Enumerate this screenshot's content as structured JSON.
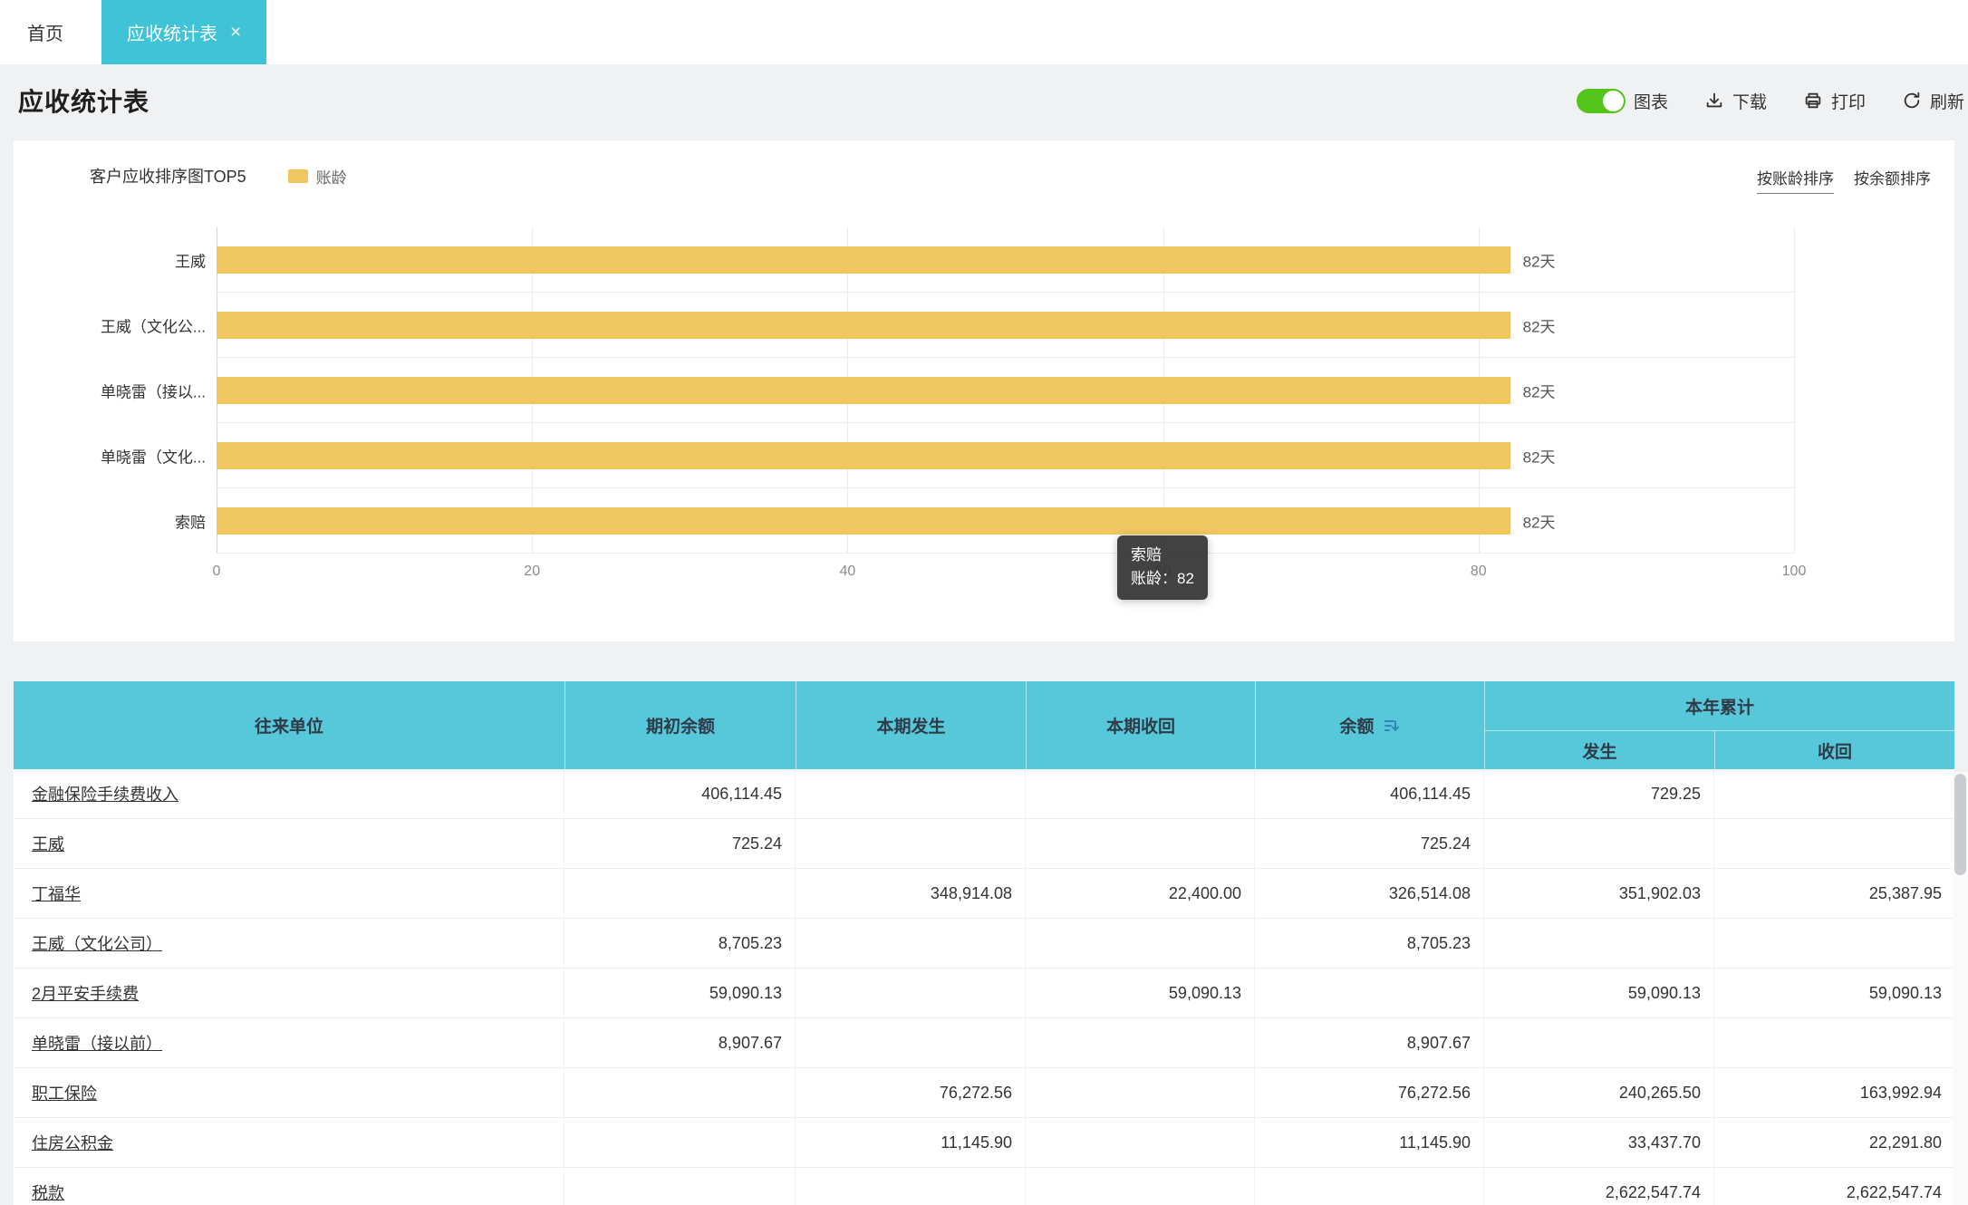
{
  "colors": {
    "accent": "#3fc3d6",
    "table_header_bg": "#56c8da",
    "bar": "#f0c75f",
    "toggle_on": "#52c41a"
  },
  "tabs": {
    "home": "首页",
    "active": "应收统计表",
    "close_icon": "×"
  },
  "page": {
    "title": "应收统计表"
  },
  "toolbar": {
    "chart_toggle_label": "图表",
    "download_label": "下载",
    "print_label": "打印",
    "refresh_label": "刷新"
  },
  "chart": {
    "title": "客户应收排序图TOP5",
    "legend_label": "账龄",
    "sort_by_age_label": "按账龄排序",
    "sort_by_balance_label": "按余额排序",
    "tooltip": {
      "title": "索赔",
      "line": "账龄：82"
    }
  },
  "chart_data": {
    "type": "bar",
    "orientation": "horizontal",
    "title": "客户应收排序图TOP5",
    "series_name": "账龄",
    "categories": [
      "王威",
      "王威（文化公...",
      "单晓雷（接以...",
      "单晓雷（文化...",
      "索赔"
    ],
    "values": [
      82,
      82,
      82,
      82,
      82
    ],
    "value_labels": [
      "82天",
      "82天",
      "82天",
      "82天",
      "82天"
    ],
    "xlim": [
      0,
      100
    ],
    "xticks": [
      0,
      20,
      40,
      60,
      80,
      100
    ],
    "grid": true,
    "legend_position": "top",
    "bar_color": "#f0c75f"
  },
  "table": {
    "headers": {
      "unit": "往来单位",
      "opening_balance": "期初余额",
      "current_incurred": "本期发生",
      "current_received": "本期收回",
      "balance": "余额",
      "year_total": "本年累计",
      "year_incurred": "发生",
      "year_received": "收回"
    },
    "rows": [
      {
        "unit": "金融保险手续费收入",
        "opening": "406,114.45",
        "incurred": "",
        "received": "",
        "balance": "406,114.45",
        "year_incurred": "729.25",
        "year_received": ""
      },
      {
        "unit": "王威",
        "opening": "725.24",
        "incurred": "",
        "received": "",
        "balance": "725.24",
        "year_incurred": "",
        "year_received": ""
      },
      {
        "unit": "丁福华",
        "opening": "",
        "incurred": "348,914.08",
        "received": "22,400.00",
        "balance": "326,514.08",
        "year_incurred": "351,902.03",
        "year_received": "25,387.95"
      },
      {
        "unit": "王威（文化公司）",
        "opening": "8,705.23",
        "incurred": "",
        "received": "",
        "balance": "8,705.23",
        "year_incurred": "",
        "year_received": ""
      },
      {
        "unit": "2月平安手续费",
        "opening": "59,090.13",
        "incurred": "",
        "received": "59,090.13",
        "balance": "",
        "year_incurred": "59,090.13",
        "year_received": "59,090.13"
      },
      {
        "unit": "单晓雷（接以前）",
        "opening": "8,907.67",
        "incurred": "",
        "received": "",
        "balance": "8,907.67",
        "year_incurred": "",
        "year_received": ""
      },
      {
        "unit": "职工保险",
        "opening": "",
        "incurred": "76,272.56",
        "received": "",
        "balance": "76,272.56",
        "year_incurred": "240,265.50",
        "year_received": "163,992.94"
      },
      {
        "unit": "住房公积金",
        "opening": "",
        "incurred": "11,145.90",
        "received": "",
        "balance": "11,145.90",
        "year_incurred": "33,437.70",
        "year_received": "22,291.80"
      },
      {
        "unit": "税款",
        "opening": "",
        "incurred": "",
        "received": "",
        "balance": "",
        "year_incurred": "2,622,547.74",
        "year_received": "2,622,547.74"
      }
    ]
  }
}
